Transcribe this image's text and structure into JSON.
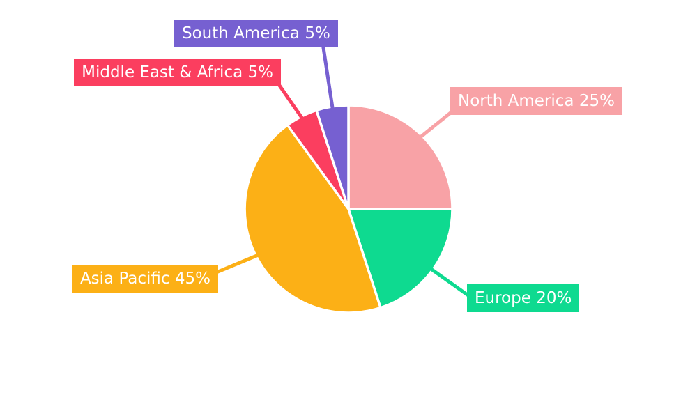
{
  "page": {
    "background": "#FFFFFF"
  },
  "chart_data": {
    "type": "pie",
    "title": "",
    "categories": [
      "North America",
      "Europe",
      "Asia Pacific",
      "Middle East & Africa",
      "South America"
    ],
    "values": [
      25,
      20,
      45,
      5,
      5
    ],
    "unit": "%",
    "slices": [
      {
        "name": "North America",
        "value": 25,
        "label": "North America 25%",
        "color": "#F8A2A6"
      },
      {
        "name": "Europe",
        "value": 20,
        "label": "Europe 20%",
        "color": "#0EDA90"
      },
      {
        "name": "Asia Pacific",
        "value": 45,
        "label": "Asia Pacific 45%",
        "color": "#FCB016"
      },
      {
        "name": "Middle East & Africa",
        "value": 5,
        "label": "Middle East & Africa 5%",
        "color": "#FB3E5F"
      },
      {
        "name": "South America",
        "value": 5,
        "label": "South America 5%",
        "color": "#7660D1"
      }
    ],
    "start_angle_deg": 0,
    "direction": "clockwise",
    "slice_gap_color": "#FFFFFF",
    "label_text_color": "#FFFFFF",
    "legend": "none",
    "label_style": "colored-box-with-leader-line"
  }
}
